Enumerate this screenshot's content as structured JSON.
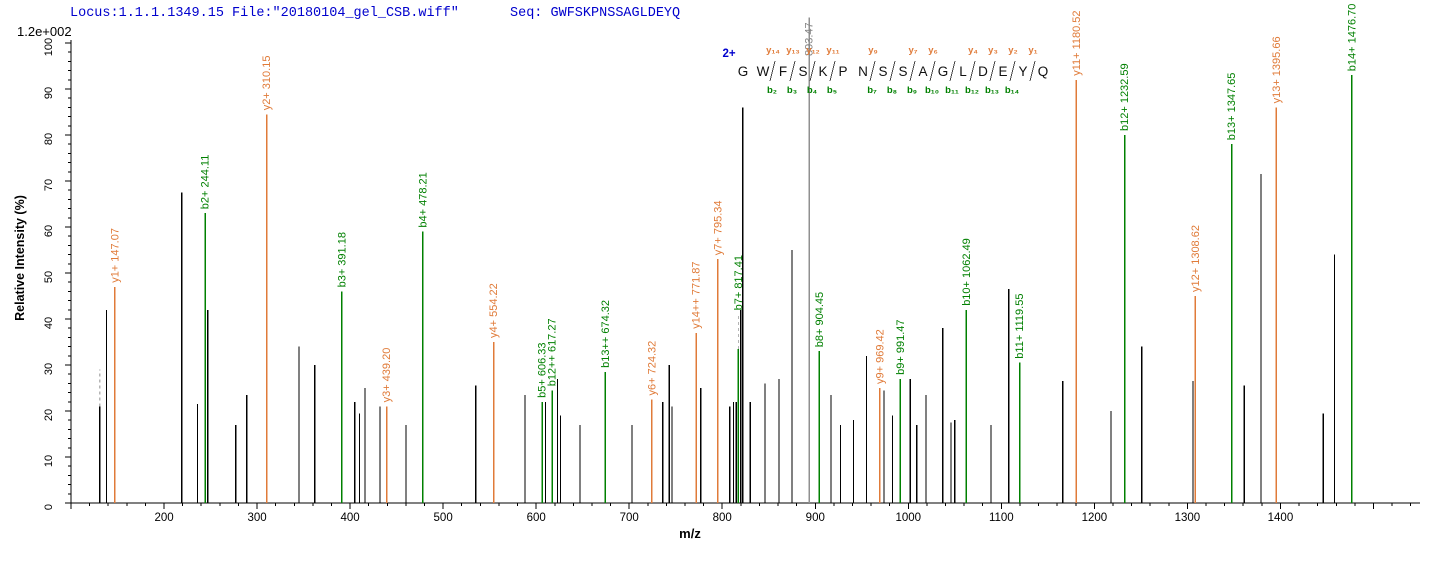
{
  "header": {
    "locus_file": "Locus:1.1.1.1349.15 File:\"20180104_gel_CSB.wiff\"",
    "seq": "Seq: GWFSKPNSSAGLDEYQ",
    "text_color": "#0000cd"
  },
  "chart_data": {
    "type": "bar",
    "subtype": "ms2-fragment-spectrum",
    "title": "",
    "xlabel": "m/z",
    "ylabel": "Relative  Intensity  (%)",
    "max_intensity_label": "1.2e+002",
    "xlim": [
      100,
      1550
    ],
    "ylim": [
      0,
      100
    ],
    "x_tick_step_major": 100,
    "x_tick_step_minor": 20,
    "x_label_min": 200,
    "x_label_max": 1400,
    "y_tick_step_major": 10,
    "y_tick_step_minor": 2,
    "grid": "off",
    "legend": "none",
    "colors": {
      "b_ion": "#008000",
      "y_ion": "#e07b39",
      "unassigned": "#000000",
      "precursor": "#909090",
      "dash": "#b4b4b4"
    },
    "peptide": {
      "charge_label": "2+",
      "residues": [
        "G",
        "W",
        "F",
        "S",
        "K",
        "P",
        "N",
        "S",
        "S",
        "A",
        "G",
        "L",
        "D",
        "E",
        "Y",
        "Q"
      ],
      "boundaries": [
        {
          "after": 1,
          "y": "y14",
          "b": "b2"
        },
        {
          "after": 2,
          "y": "y13",
          "b": "b3"
        },
        {
          "after": 3,
          "y": "y12",
          "b": "b4"
        },
        {
          "after": 4,
          "y": "y11",
          "b": "b5"
        },
        {
          "after": 6,
          "y": "y9",
          "b": "b7"
        },
        {
          "after": 7,
          "b": "b8"
        },
        {
          "after": 8,
          "y": "y7",
          "b": "b9"
        },
        {
          "after": 9,
          "y": "y6",
          "b": "b10"
        },
        {
          "after": 10,
          "b": "b11"
        },
        {
          "after": 11,
          "y": "y4",
          "b": "b12"
        },
        {
          "after": 12,
          "y": "y3",
          "b": "b13"
        },
        {
          "after": 13,
          "y": "y2",
          "b": "b14"
        },
        {
          "after": 14,
          "y": "y1"
        }
      ]
    },
    "peaks": [
      {
        "mz": 131,
        "i": 21,
        "t": "unassigned",
        "dash_to": 29
      },
      {
        "mz": 138,
        "i": 42,
        "t": "unassigned"
      },
      {
        "mz": 147.07,
        "i": 47,
        "t": "y",
        "label": "y1+ 147.07"
      },
      {
        "mz": 219,
        "i": 67.5,
        "t": "unassigned"
      },
      {
        "mz": 236,
        "i": 21.5,
        "t": "unassigned"
      },
      {
        "mz": 244.11,
        "i": 63,
        "t": "b",
        "label": "b2+ 244.11"
      },
      {
        "mz": 247,
        "i": 42,
        "t": "unassigned"
      },
      {
        "mz": 277,
        "i": 17,
        "t": "unassigned"
      },
      {
        "mz": 289,
        "i": 23.5,
        "t": "unassigned"
      },
      {
        "mz": 310.15,
        "i": 84.5,
        "t": "y",
        "label": "y2+ 310.15"
      },
      {
        "mz": 345,
        "i": 34,
        "t": "unassigned"
      },
      {
        "mz": 362,
        "i": 30,
        "t": "unassigned"
      },
      {
        "mz": 391.18,
        "i": 46,
        "t": "b",
        "label": "b3+ 391.18"
      },
      {
        "mz": 405,
        "i": 22,
        "t": "unassigned"
      },
      {
        "mz": 410,
        "i": 19.5,
        "t": "unassigned"
      },
      {
        "mz": 416,
        "i": 25,
        "t": "unassigned"
      },
      {
        "mz": 432,
        "i": 21,
        "t": "unassigned"
      },
      {
        "mz": 439.2,
        "i": 21,
        "t": "y",
        "label": "y3+ 439.20"
      },
      {
        "mz": 460,
        "i": 17,
        "t": "unassigned"
      },
      {
        "mz": 478.21,
        "i": 59,
        "t": "b",
        "label": "b4+ 478.21"
      },
      {
        "mz": 535,
        "i": 25.5,
        "t": "unassigned"
      },
      {
        "mz": 554.22,
        "i": 35,
        "t": "y",
        "label": "y4+ 554.22"
      },
      {
        "mz": 588,
        "i": 23.5,
        "t": "unassigned"
      },
      {
        "mz": 606.33,
        "i": 22,
        "t": "b",
        "label": "b5+ 606.33"
      },
      {
        "mz": 610,
        "i": 22,
        "t": "unassigned"
      },
      {
        "mz": 617.27,
        "i": 24.5,
        "t": "b",
        "label": "b12++ 617.27"
      },
      {
        "mz": 623,
        "i": 27,
        "t": "unassigned"
      },
      {
        "mz": 626,
        "i": 19,
        "t": "unassigned"
      },
      {
        "mz": 647,
        "i": 17,
        "t": "unassigned"
      },
      {
        "mz": 674.32,
        "i": 28.5,
        "t": "b",
        "label": "b13++ 674.32"
      },
      {
        "mz": 703,
        "i": 17,
        "t": "unassigned"
      },
      {
        "mz": 724.32,
        "i": 22.5,
        "t": "y",
        "label": "y6+ 724.32"
      },
      {
        "mz": 736,
        "i": 22,
        "t": "unassigned"
      },
      {
        "mz": 743,
        "i": 30,
        "t": "unassigned"
      },
      {
        "mz": 746,
        "i": 21,
        "t": "unassigned"
      },
      {
        "mz": 771.87,
        "i": 37,
        "t": "y",
        "label": "y14++ 771.87"
      },
      {
        "mz": 777,
        "i": 25,
        "t": "unassigned"
      },
      {
        "mz": 795.34,
        "i": 53,
        "t": "y",
        "label": "y7+ 795.34"
      },
      {
        "mz": 808,
        "i": 21,
        "t": "unassigned"
      },
      {
        "mz": 812,
        "i": 22,
        "t": "unassigned"
      },
      {
        "mz": 815,
        "i": 22,
        "t": "unassigned"
      },
      {
        "mz": 817.41,
        "i": 33.5,
        "t": "b",
        "label": "b7+ 817.41",
        "leader_to": 41
      },
      {
        "mz": 820,
        "i": 42,
        "t": "unassigned"
      },
      {
        "mz": 822,
        "i": 86,
        "t": "unassigned"
      },
      {
        "mz": 830,
        "i": 22,
        "t": "unassigned"
      },
      {
        "mz": 846,
        "i": 26,
        "t": "unassigned"
      },
      {
        "mz": 861,
        "i": 27,
        "t": "unassigned"
      },
      {
        "mz": 875,
        "i": 55,
        "t": "unassigned"
      },
      {
        "mz": 893.47,
        "i": 105.5,
        "t": "precursor",
        "label": "893.47"
      },
      {
        "mz": 904.45,
        "i": 33,
        "t": "b",
        "label": "b8+ 904.45"
      },
      {
        "mz": 917,
        "i": 23.5,
        "t": "unassigned"
      },
      {
        "mz": 927,
        "i": 17,
        "t": "unassigned"
      },
      {
        "mz": 941,
        "i": 18,
        "t": "unassigned"
      },
      {
        "mz": 955,
        "i": 32,
        "t": "unassigned"
      },
      {
        "mz": 969.42,
        "i": 25,
        "t": "y",
        "label": "y9+ 969.42"
      },
      {
        "mz": 974,
        "i": 24.5,
        "t": "unassigned"
      },
      {
        "mz": 983,
        "i": 19,
        "t": "unassigned"
      },
      {
        "mz": 991.47,
        "i": 27,
        "t": "b",
        "label": "b9+ 991.47"
      },
      {
        "mz": 1002,
        "i": 27,
        "t": "unassigned"
      },
      {
        "mz": 1009,
        "i": 17,
        "t": "unassigned"
      },
      {
        "mz": 1019,
        "i": 23.5,
        "t": "unassigned"
      },
      {
        "mz": 1037,
        "i": 38,
        "t": "unassigned"
      },
      {
        "mz": 1046,
        "i": 17.5,
        "t": "unassigned"
      },
      {
        "mz": 1050,
        "i": 18,
        "t": "unassigned"
      },
      {
        "mz": 1062.49,
        "i": 42,
        "t": "b",
        "label": "b10+ 1062.49"
      },
      {
        "mz": 1089,
        "i": 17,
        "t": "unassigned"
      },
      {
        "mz": 1108,
        "i": 46.5,
        "t": "unassigned"
      },
      {
        "mz": 1119.55,
        "i": 30.5,
        "t": "b",
        "label": "b11+ 1119.55"
      },
      {
        "mz": 1166,
        "i": 26.5,
        "t": "unassigned"
      },
      {
        "mz": 1180.52,
        "i": 92,
        "t": "y",
        "label": "y11+ 1180.52"
      },
      {
        "mz": 1218,
        "i": 20,
        "t": "unassigned"
      },
      {
        "mz": 1232.59,
        "i": 80,
        "t": "b",
        "label": "b12+ 1232.59"
      },
      {
        "mz": 1251,
        "i": 34,
        "t": "unassigned"
      },
      {
        "mz": 1306,
        "i": 26.5,
        "t": "unassigned"
      },
      {
        "mz": 1308.62,
        "i": 45,
        "t": "y",
        "label": "y12+ 1308.62"
      },
      {
        "mz": 1347.65,
        "i": 78,
        "t": "b",
        "label": "b13+ 1347.65"
      },
      {
        "mz": 1361,
        "i": 25.5,
        "t": "unassigned"
      },
      {
        "mz": 1379,
        "i": 71.5,
        "t": "unassigned"
      },
      {
        "mz": 1395.66,
        "i": 86,
        "t": "y",
        "label": "y13+ 1395.66"
      },
      {
        "mz": 1446,
        "i": 19.5,
        "t": "unassigned"
      },
      {
        "mz": 1458,
        "i": 54,
        "t": "unassigned"
      },
      {
        "mz": 1476.7,
        "i": 93,
        "t": "b",
        "label": "b14+ 1476.70"
      }
    ]
  }
}
